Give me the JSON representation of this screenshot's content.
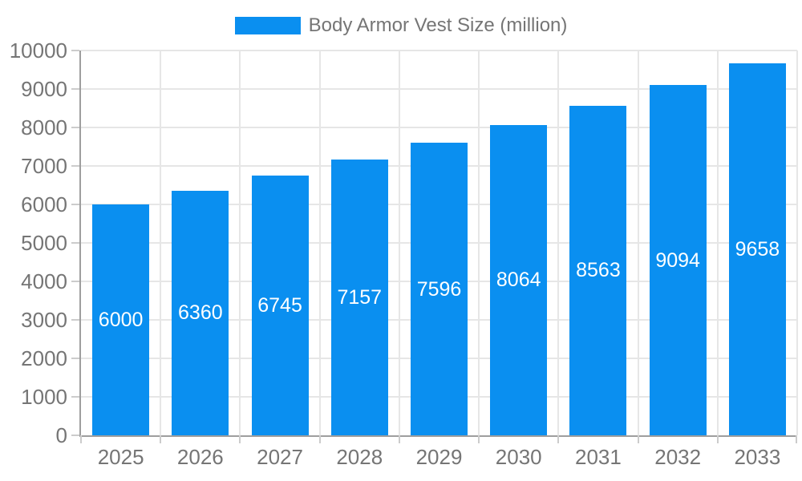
{
  "legend": {
    "label": "Body Armor Vest Size (million)"
  },
  "colors": {
    "bar": "#0a8ff0",
    "grid": "#e6e6e6",
    "axis": "#9e9e9e",
    "tick": "#cccccc",
    "axis_text": "#757575",
    "bar_label": "#ffffff"
  },
  "chart_data": {
    "type": "bar",
    "title": "Body Armor Vest Size (million)",
    "categories": [
      "2025",
      "2026",
      "2027",
      "2028",
      "2029",
      "2030",
      "2031",
      "2032",
      "2033"
    ],
    "values": [
      6000,
      6360,
      6745,
      7157,
      7596,
      8064,
      8563,
      9094,
      9658
    ],
    "series": [
      {
        "name": "Body Armor Vest Size (million)",
        "values": [
          6000,
          6360,
          6745,
          7157,
          7596,
          8064,
          8563,
          9094,
          9658
        ]
      }
    ],
    "xlabel": "",
    "ylabel": "",
    "ylim": [
      0,
      10000
    ],
    "ytick_step": 1000,
    "grid": true,
    "legend_position": "top",
    "value_labels": "inside-center"
  }
}
